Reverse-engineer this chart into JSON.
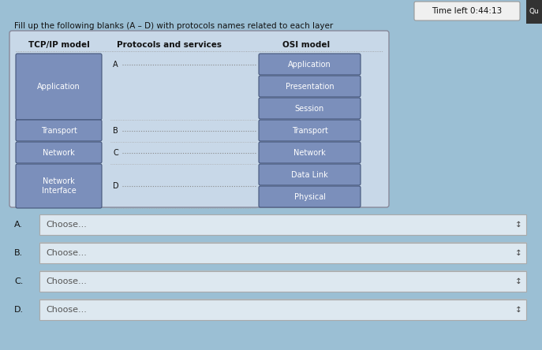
{
  "page_bg": "#9bbfd4",
  "timer_text": "Time left 0:44:13",
  "title": "Fill up the following blanks (A – D) with protocols names related to each layer",
  "header_tcp": "TCP/IP model",
  "header_proto": "Protocols and services",
  "header_osi": "OSI model",
  "osi_layers": [
    "Application",
    "Presentation",
    "Session",
    "Transport",
    "Network",
    "Data Link",
    "Physical"
  ],
  "dropdown_labels": [
    "A.",
    "B.",
    "C.",
    "D."
  ],
  "dropdown_text": "Choose...",
  "box_fill_tcp": "#7b8fbb",
  "box_fill_osi": "#7b8fbb",
  "box_border": "#44557a",
  "outer_box_fill": "#c8d8e8",
  "outer_box_border": "#888899",
  "dropdown_fill": "#dde8f0",
  "dropdown_border": "#aaaaaa",
  "timer_bg": "#f0f0f0",
  "qu_bg": "#222222",
  "font_size_title": 7.5,
  "font_size_header": 7.5,
  "font_size_box": 7.0,
  "font_size_blank": 7.0,
  "font_size_dropdown": 8.0,
  "font_size_timer": 7.5
}
